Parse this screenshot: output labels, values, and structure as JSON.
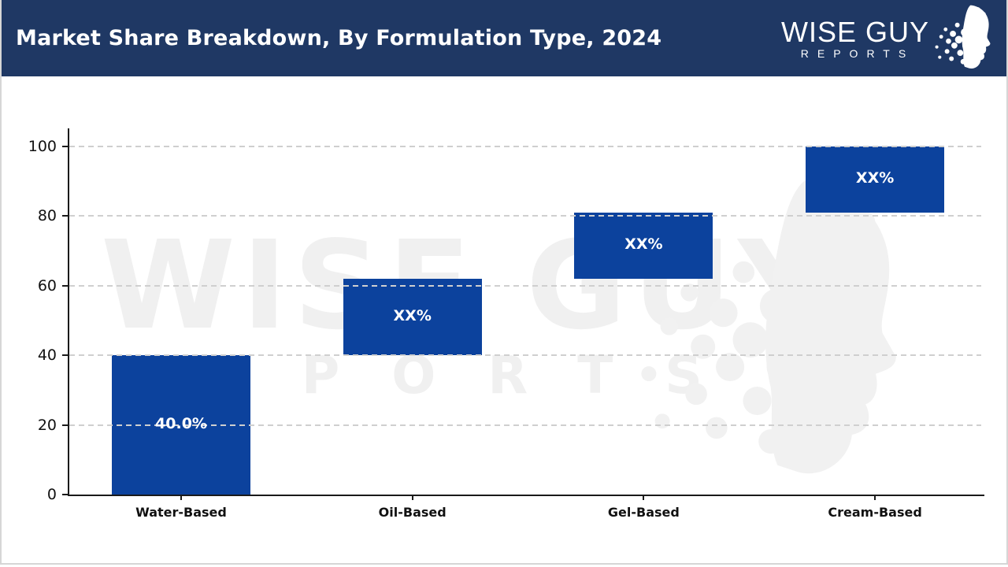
{
  "header": {
    "title": "Market Share Breakdown, By Formulation Type, 2024",
    "bg_color": "#1f3864",
    "logo": {
      "line1": "WISE GUY",
      "line2": "REPORTS"
    }
  },
  "watermark": {
    "line1": "WISE GUY",
    "line2": "REPORTS"
  },
  "chart_data": {
    "type": "bar",
    "subtype": "waterfall",
    "title": "Market Share Breakdown, By Formulation Type, 2024",
    "categories": [
      "Water-Based",
      "Oil-Based",
      "Gel-Based",
      "Cream-Based"
    ],
    "bars": [
      {
        "category": "Water-Based",
        "start": 0,
        "end": 40,
        "label": "40.0%"
      },
      {
        "category": "Oil-Based",
        "start": 40,
        "end": 62,
        "label": "XX%"
      },
      {
        "category": "Gel-Based",
        "start": 62,
        "end": 81,
        "label": "XX%"
      },
      {
        "category": "Cream-Based",
        "start": 81,
        "end": 100,
        "label": "XX%"
      }
    ],
    "ylim": [
      0,
      100
    ],
    "yticks": [
      0,
      20,
      40,
      60,
      80,
      100
    ],
    "xlabel": "",
    "ylabel": "",
    "grid": "horizontal-dashed",
    "legend": "none",
    "bar_color": "#0c429d",
    "bar_label_color": "#ffffff"
  }
}
